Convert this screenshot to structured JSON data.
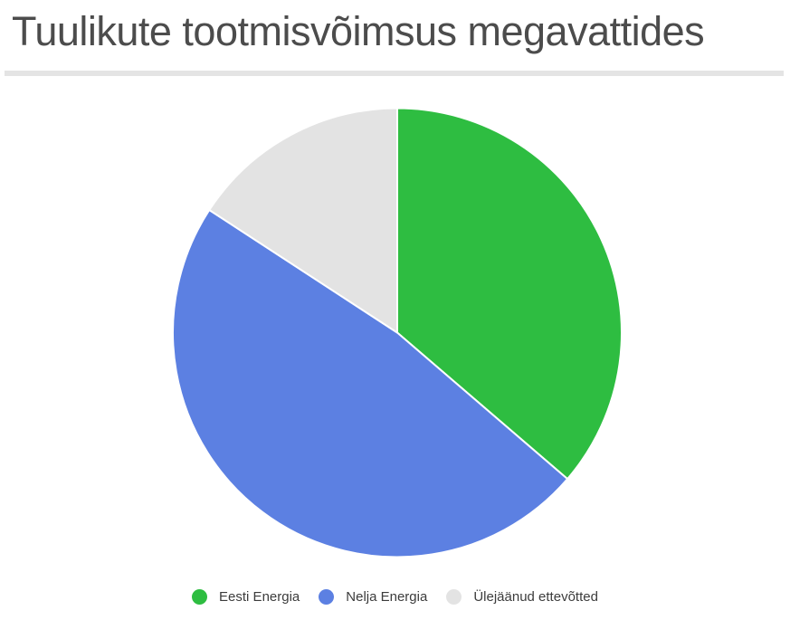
{
  "title": "Tuulikute tootmisvõimsus megavattides",
  "colors": {
    "title_text": "#4c4c4c",
    "divider": "#e4e4e4",
    "legend_text": "#3c3c3c",
    "background": "#ffffff",
    "slice_green": "#2ebd41",
    "slice_blue": "#5c80e2",
    "slice_gray": "#e3e3e3"
  },
  "chart_data": {
    "type": "pie",
    "title": "Tuulikute tootmisvõimsus megavattides",
    "start_angle_deg": 0,
    "direction": "clockwise",
    "slice_border_color": "#ffffff",
    "background_color": "#ffffff",
    "legend_position": "bottom",
    "slices": [
      {
        "id": "eesti-energia",
        "label": "Eesti Energia",
        "value_percent": 36.3,
        "angle_deg": 130.7,
        "color": "#2ebd41"
      },
      {
        "id": "nelja-energia",
        "label": "Nelja Energia",
        "value_percent": 47.9,
        "angle_deg": 172.4,
        "color": "#5c80e2"
      },
      {
        "id": "ulejaanud-ettevotted",
        "label": "Ülejäänud ettevõtted",
        "value_percent": 15.8,
        "angle_deg": 56.9,
        "color": "#e3e3e3"
      }
    ]
  }
}
